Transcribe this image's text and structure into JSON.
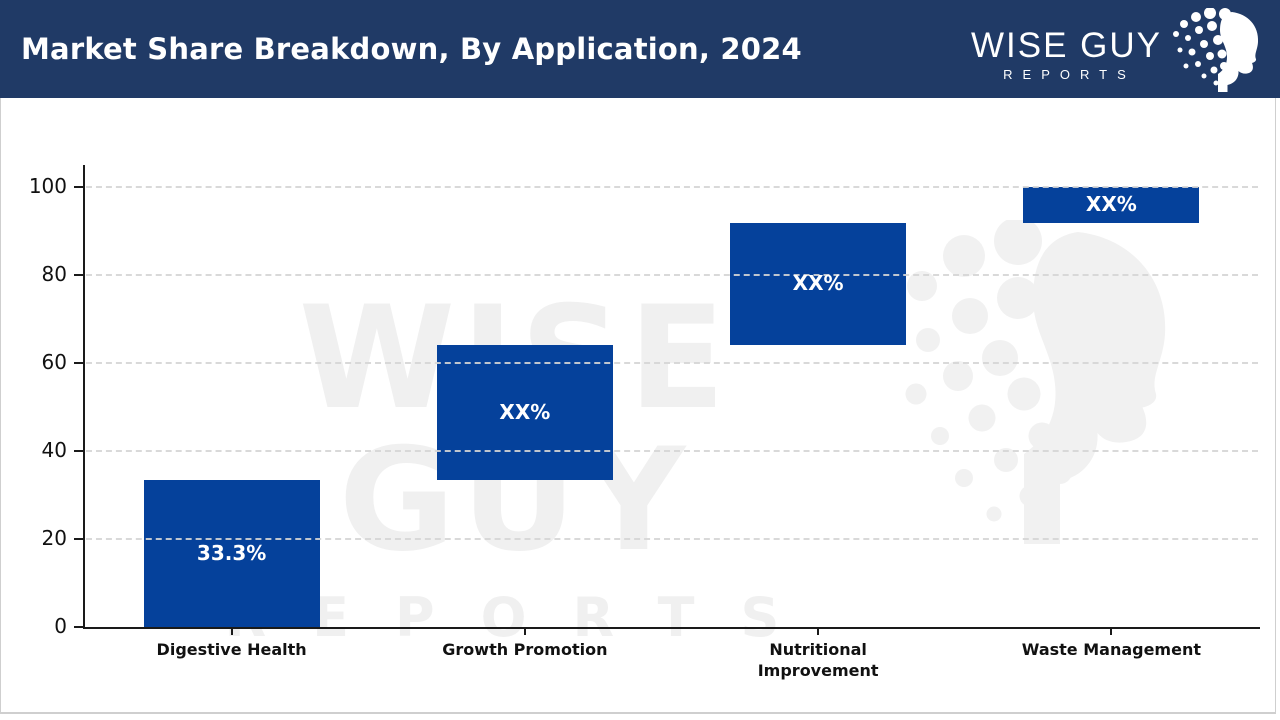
{
  "header": {
    "title": "Market Share Breakdown, By Application, 2024",
    "logo": {
      "line1": "WISE GUY",
      "line2": "REPORTS"
    }
  },
  "watermark": {
    "line1": "WISE GUY",
    "line2": "REPORTS"
  },
  "chart_data": {
    "type": "bar",
    "variant": "floating-waterfall",
    "title": "Market Share Breakdown, By Application, 2024",
    "categories": [
      "Digestive Health",
      "Growth Promotion",
      "Nutritional Improvement",
      "Waste Management"
    ],
    "series": [
      {
        "category": "Digestive Health",
        "start": 0,
        "end": 33.3,
        "label": "33.3%"
      },
      {
        "category": "Growth Promotion",
        "start": 33.3,
        "end": 64.1,
        "label": "XX%"
      },
      {
        "category": "Nutritional Improvement",
        "start": 64.1,
        "end": 91.8,
        "label": "XX%"
      },
      {
        "category": "Waste Management",
        "start": 91.8,
        "end": 100,
        "label": "XX%"
      }
    ],
    "xlabel": "",
    "ylabel": "",
    "ylim": [
      0,
      105
    ],
    "yticks": [
      0,
      20,
      40,
      60,
      80,
      100
    ],
    "grid": {
      "axis": "y",
      "style": "dashed",
      "color": "#d9d9d9"
    },
    "legend": "none",
    "bar_color": "#05419b",
    "bar_label_color": "#ffffff",
    "axis_color": "#1a1a1a",
    "header_color": "#203a66"
  }
}
